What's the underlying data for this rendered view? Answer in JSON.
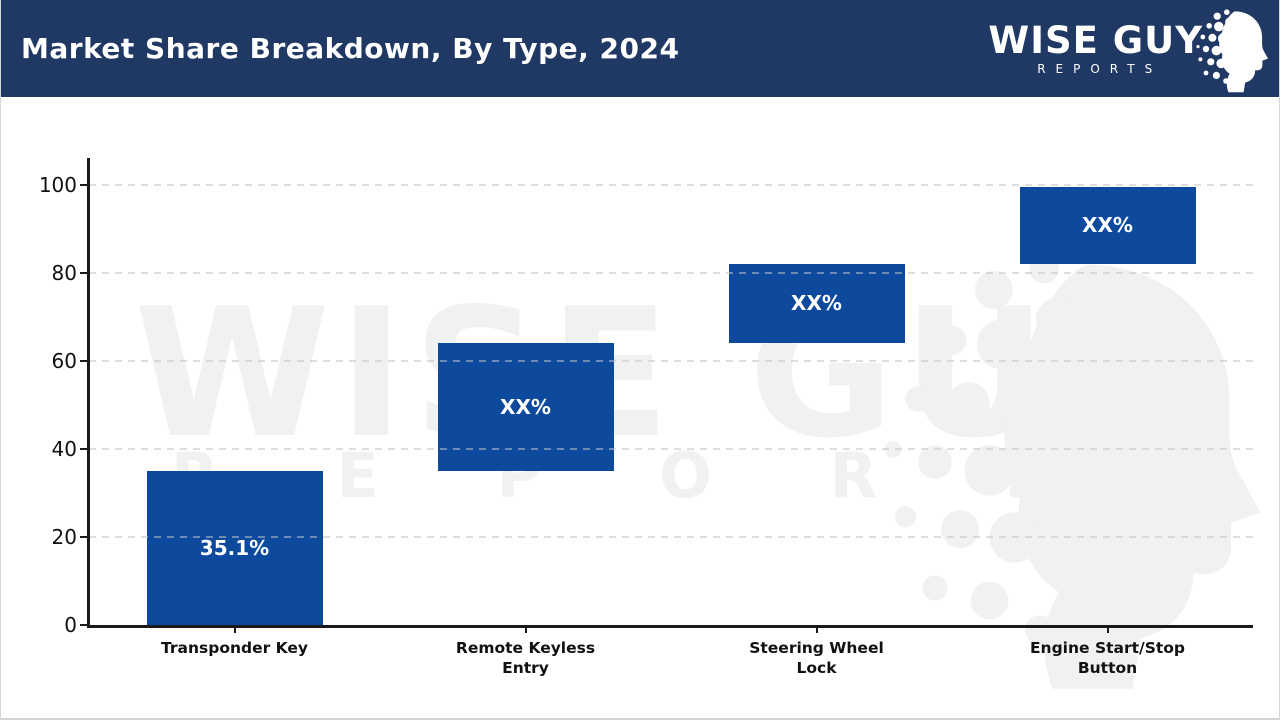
{
  "header": {
    "title": "Market Share Breakdown, By Type, 2024",
    "logo": {
      "line1": "WISE GUY",
      "line2": "REPORTS"
    }
  },
  "watermark": {
    "line1": "WISE GUY",
    "line2": "R E P O R T S"
  },
  "colors": {
    "header_bg": "#1f3864",
    "bar": "#0d4a9e",
    "bar_label_text": "#ffffff",
    "axis": "#1a1a1a",
    "tick_label_text": "#111111",
    "gridline": "#d8d8d8",
    "watermark": "#f0f1f3",
    "page_border": "#d5d5d5",
    "title_text": "#ffffff"
  },
  "chart_data": {
    "type": "bar",
    "subtype": "waterfall",
    "title": "Market Share Breakdown, By Type, 2024",
    "xlabel": "",
    "ylabel": "",
    "ylim": [
      0,
      100
    ],
    "yticks": [
      0,
      20,
      40,
      60,
      80,
      100
    ],
    "grid": "horizontal-dashed",
    "legend": "none",
    "categories": [
      "Transponder Key",
      "Remote Keyless Entry",
      "Steering Wheel Lock",
      "Engine Start/Stop Button"
    ],
    "category_label_lines": [
      [
        "Transponder Key"
      ],
      [
        "Remote Keyless",
        "Entry"
      ],
      [
        "Steering Wheel",
        "Lock"
      ],
      [
        "Engine Start/Stop",
        "Button"
      ]
    ],
    "segments": [
      {
        "category": "Transponder Key",
        "start": 0,
        "end": 35.1,
        "label": "35.1%"
      },
      {
        "category": "Remote Keyless Entry",
        "start": 35.1,
        "end": 64.2,
        "label": "XX%"
      },
      {
        "category": "Steering Wheel Lock",
        "start": 64.2,
        "end": 82.1,
        "label": "XX%"
      },
      {
        "category": "Engine Start/Stop Button",
        "start": 82.1,
        "end": 99.5,
        "label": "XX%"
      }
    ]
  }
}
